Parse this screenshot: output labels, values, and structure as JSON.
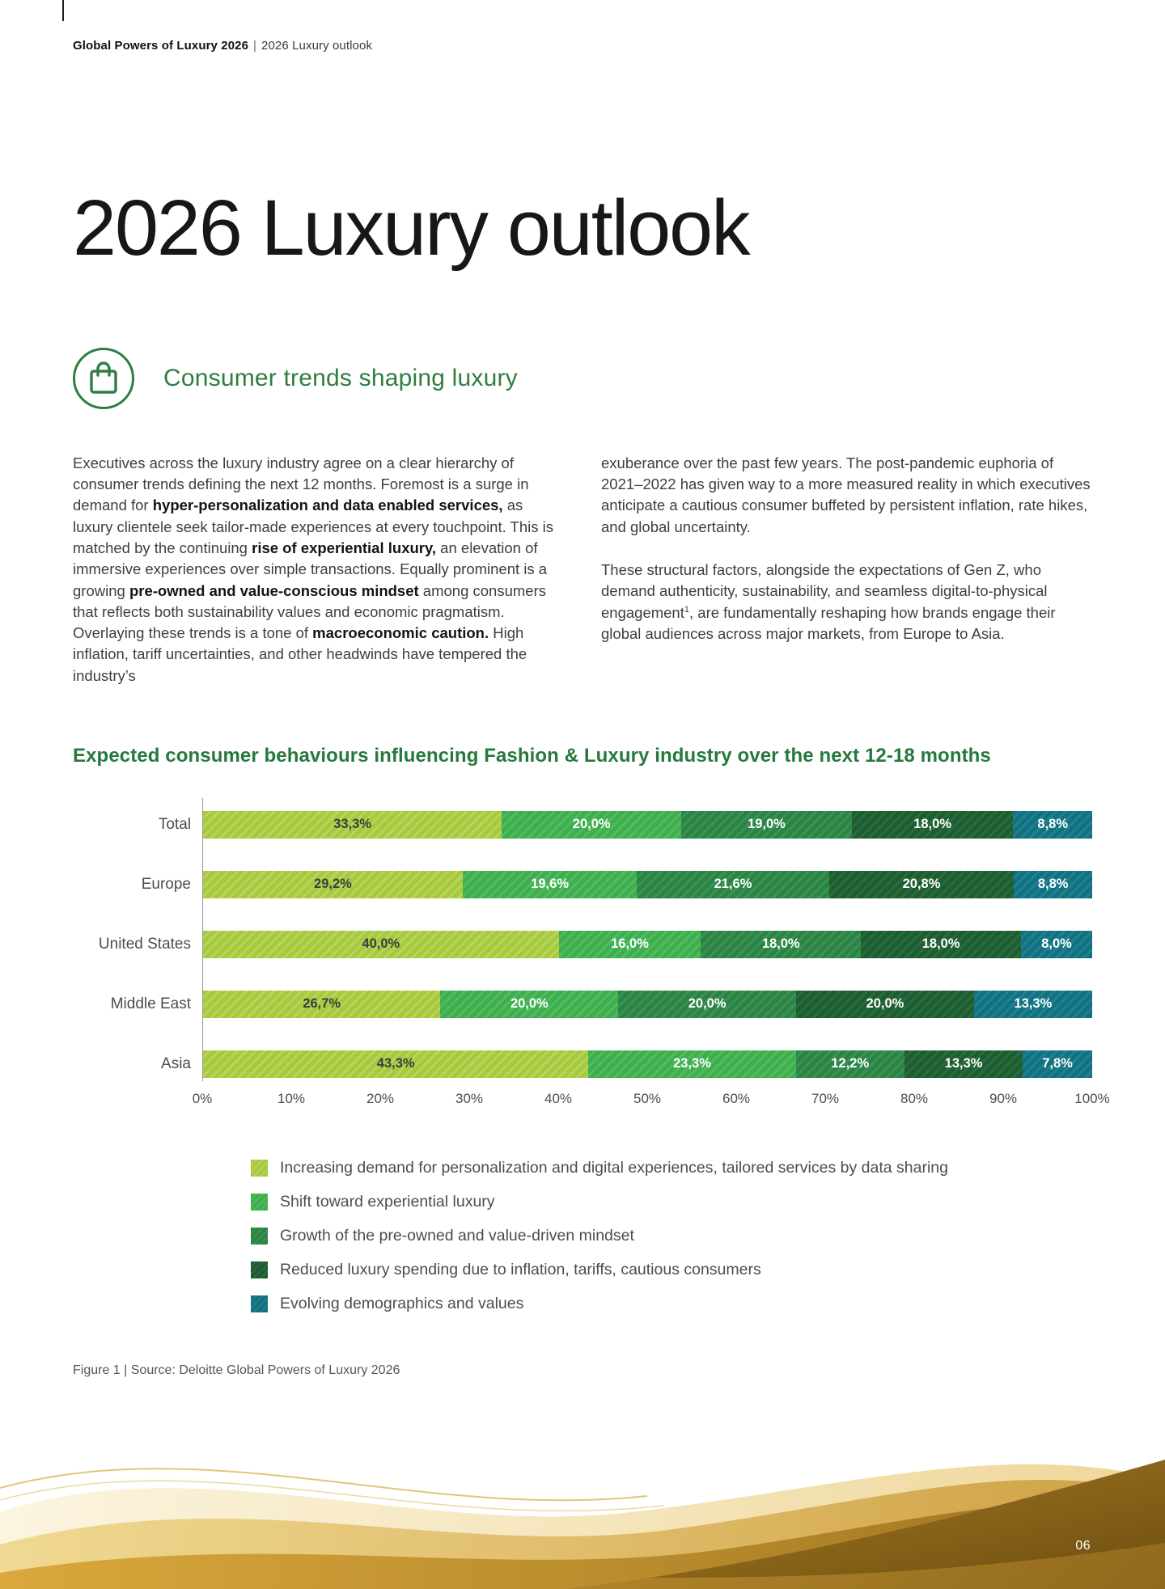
{
  "page": {
    "breadcrumb_title": "Global Powers of Luxury 2026",
    "breadcrumb_divider": "|",
    "breadcrumb_section": "2026 Luxury outlook",
    "title": "2026 Luxury outlook",
    "section_heading": "Consumer trends shaping luxury",
    "figure_caption": "Figure 1 | Source: Deloitte Global Powers of Luxury 2026",
    "page_number": "06",
    "accent_green": "#2f7d41",
    "chart_title_green": "#26793c"
  },
  "body": {
    "col1": [
      [
        {
          "t": "Executives across the luxury industry agree on a clear hierarchy of consumer trends defining the next 12 months. Foremost is a surge in demand for "
        },
        {
          "t": "hyper-personalization and data enabled services,",
          "b": true
        },
        {
          "t": " as luxury clientele seek tailor-made experiences at every touchpoint. This is matched by the continuing "
        },
        {
          "t": "rise of experiential luxury,",
          "b": true
        },
        {
          "t": " an elevation of immersive experiences over simple transactions. Equally prominent is a growing "
        },
        {
          "t": "pre-owned and value-conscious mindset",
          "b": true
        },
        {
          "t": " among consumers that reflects both sustainability values and economic pragmatism. Overlaying these trends is a tone of "
        },
        {
          "t": "macroeconomic caution.",
          "b": true
        },
        {
          "t": " High inflation, tariff uncertainties, and other headwinds have tempered the industry’s"
        }
      ]
    ],
    "col2": [
      [
        {
          "t": "exuberance over the past few years. The post-pandemic euphoria of 2021–2022 has given way to a more measured reality in which executives anticipate a cautious consumer buffeted by persistent inflation, rate hikes, and global uncertainty."
        }
      ],
      [
        {
          "t": "These structural factors, alongside the expectations of Gen Z, who demand authenticity, sustainability, and seamless digital-to-physical engagement"
        },
        {
          "t": "1",
          "sup": true
        },
        {
          "t": ", are fundamentally reshaping how brands engage their global audiences across major markets, from Europe to Asia."
        }
      ]
    ]
  },
  "chart_data": {
    "type": "bar",
    "orientation": "horizontal",
    "stacked": true,
    "title": "Expected consumer behaviours influencing Fashion & Luxury industry over the next 12-18 months",
    "categories": [
      "Total",
      "Europe",
      "United States",
      "Middle East",
      "Asia"
    ],
    "series": [
      {
        "name": "Increasing demand for personalization and digital experiences, tailored services by data sharing",
        "values": [
          33.3,
          29.2,
          40.0,
          26.7,
          43.3
        ],
        "labels": [
          "33,3%",
          "29,2%",
          "40,0%",
          "26,7%",
          "43,3%"
        ],
        "color": "#a6c93e",
        "stripe": "#b7d45c",
        "label_color": "#3d3d3d"
      },
      {
        "name": "Shift toward experiential luxury",
        "values": [
          20.0,
          19.6,
          16.0,
          20.0,
          23.3
        ],
        "labels": [
          "20,0%",
          "19,6%",
          "16,0%",
          "20,0%",
          "23,3%"
        ],
        "color": "#3eae4f",
        "stripe": "#52bb60",
        "label_color": "#ffffff"
      },
      {
        "name": "Growth of the pre-owned and value-driven mindset",
        "values": [
          19.0,
          21.6,
          18.0,
          20.0,
          12.2
        ],
        "labels": [
          "19,0%",
          "21,6%",
          "18,0%",
          "20,0%",
          "12,2%"
        ],
        "color": "#2b8344",
        "stripe": "#3b9254",
        "label_color": "#ffffff"
      },
      {
        "name": "Reduced luxury spending due to inflation, tariffs, cautious consumers",
        "values": [
          18.0,
          20.8,
          18.0,
          20.0,
          13.3
        ],
        "labels": [
          "18,0%",
          "20,8%",
          "18,0%",
          "20,0%",
          "13,3%"
        ],
        "color": "#1d5d31",
        "stripe": "#2a6c3e",
        "label_color": "#ffffff"
      },
      {
        "name": "Evolving demographics and values",
        "values": [
          8.8,
          8.8,
          8.0,
          13.3,
          7.8
        ],
        "labels": [
          "8,8%",
          "8,8%",
          "8,0%",
          "13,3%",
          "7,8%"
        ],
        "color": "#127180",
        "stripe": "#1f818f",
        "label_color": "#ffffff"
      }
    ],
    "x_ticks": [
      "0%",
      "10%",
      "20%",
      "30%",
      "40%",
      "50%",
      "60%",
      "70%",
      "80%",
      "90%",
      "100%"
    ],
    "xlim": [
      0,
      100
    ],
    "grid": false,
    "legend_position": "bottom"
  }
}
